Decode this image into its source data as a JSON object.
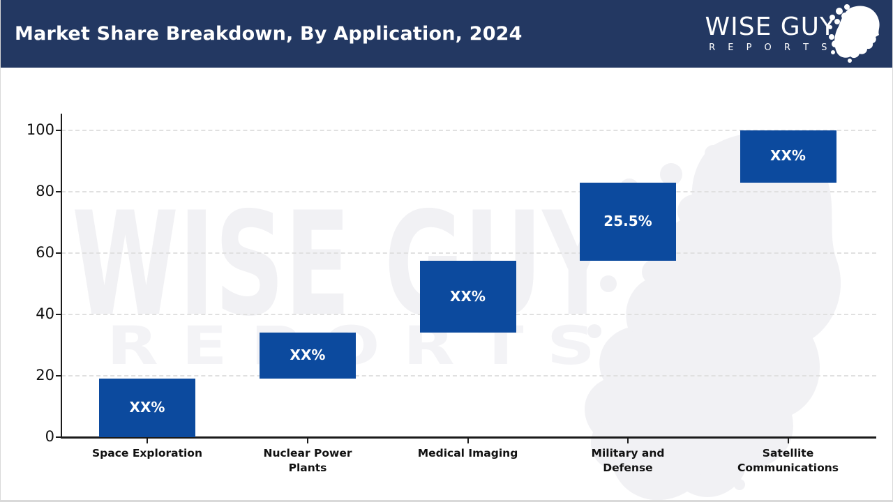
{
  "header": {
    "title": "Market Share Breakdown, By Application, 2024",
    "bg_color": "#233862",
    "logo": {
      "wordmark": "WISE GUY",
      "subtext": "R E P O R T S"
    }
  },
  "watermark": {
    "line1": "WISE GUY",
    "line2": "R E P O R T S"
  },
  "chart_data": {
    "type": "bar",
    "subtype": "waterfall",
    "title": "Market Share Breakdown, By Application, 2024",
    "categories": [
      "Space Exploration",
      "Nuclear Power\nPlants",
      "Medical Imaging",
      "Military and\nDefense",
      "Satellite\nCommunications"
    ],
    "bars": [
      {
        "category": "Space Exploration",
        "label": "XX%",
        "start": 0,
        "end": 19,
        "size": 19
      },
      {
        "category": "Nuclear Power Plants",
        "label": "XX%",
        "start": 19,
        "end": 34,
        "size": 15
      },
      {
        "category": "Medical Imaging",
        "label": "XX%",
        "start": 34,
        "end": 57.5,
        "size": 23.5
      },
      {
        "category": "Military and Defense",
        "label": "25.5%",
        "start": 57.5,
        "end": 83,
        "size": 25.5
      },
      {
        "category": "Satellite Communications",
        "label": "XX%",
        "start": 83,
        "end": 100,
        "size": 17
      }
    ],
    "yticks": [
      0,
      20,
      40,
      60,
      80,
      100
    ],
    "ylim": [
      0,
      105
    ],
    "xlabel": "",
    "ylabel": "",
    "grid": "horizontal-dashed",
    "legend": "none",
    "bar_color": "#0c4a9e"
  }
}
